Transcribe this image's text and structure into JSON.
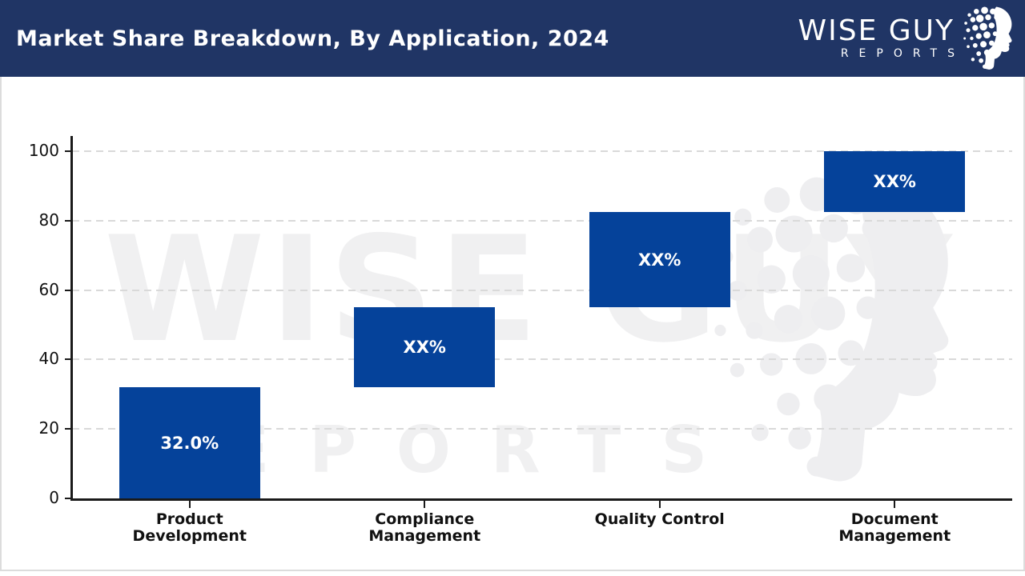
{
  "header": {
    "title": "Market Share Breakdown, By Application, 2024",
    "logo": {
      "wordmark": "WISE GUY",
      "subtext": "REPORTS"
    }
  },
  "watermark": {
    "line1": "WISE GUY",
    "line2": "REPORTS"
  },
  "chart_data": {
    "type": "bar",
    "subtype": "waterfall",
    "title": "Market Share Breakdown, By Application, 2024",
    "categories": [
      "Product Development",
      "Compliance Management",
      "Quality Control",
      "Document Management"
    ],
    "category_lines": [
      [
        "Product",
        "Development"
      ],
      [
        "Compliance",
        "Management"
      ],
      [
        "Quality Control"
      ],
      [
        "Document",
        "Management"
      ]
    ],
    "segments": [
      {
        "category": "Product Development",
        "start": 0,
        "end": 32,
        "label": "32.0%"
      },
      {
        "category": "Compliance Management",
        "start": 32,
        "end": 55,
        "label": "XX%"
      },
      {
        "category": "Quality Control",
        "start": 55,
        "end": 82.5,
        "label": "XX%"
      },
      {
        "category": "Document Management",
        "start": 82.5,
        "end": 100,
        "label": "XX%"
      }
    ],
    "xlabel": "",
    "ylabel": "",
    "ylim": [
      0,
      100
    ],
    "yticks": [
      0,
      20,
      40,
      60,
      80,
      100
    ],
    "grid": "horizontal-dashed",
    "legend": "none",
    "colors": {
      "bar": "#05429a",
      "bar_label": "#ffffff",
      "grid": "#d9d9d9",
      "axis": "#1a1a1a",
      "header_bg": "#203565",
      "watermark": "#f0f0f1"
    }
  }
}
